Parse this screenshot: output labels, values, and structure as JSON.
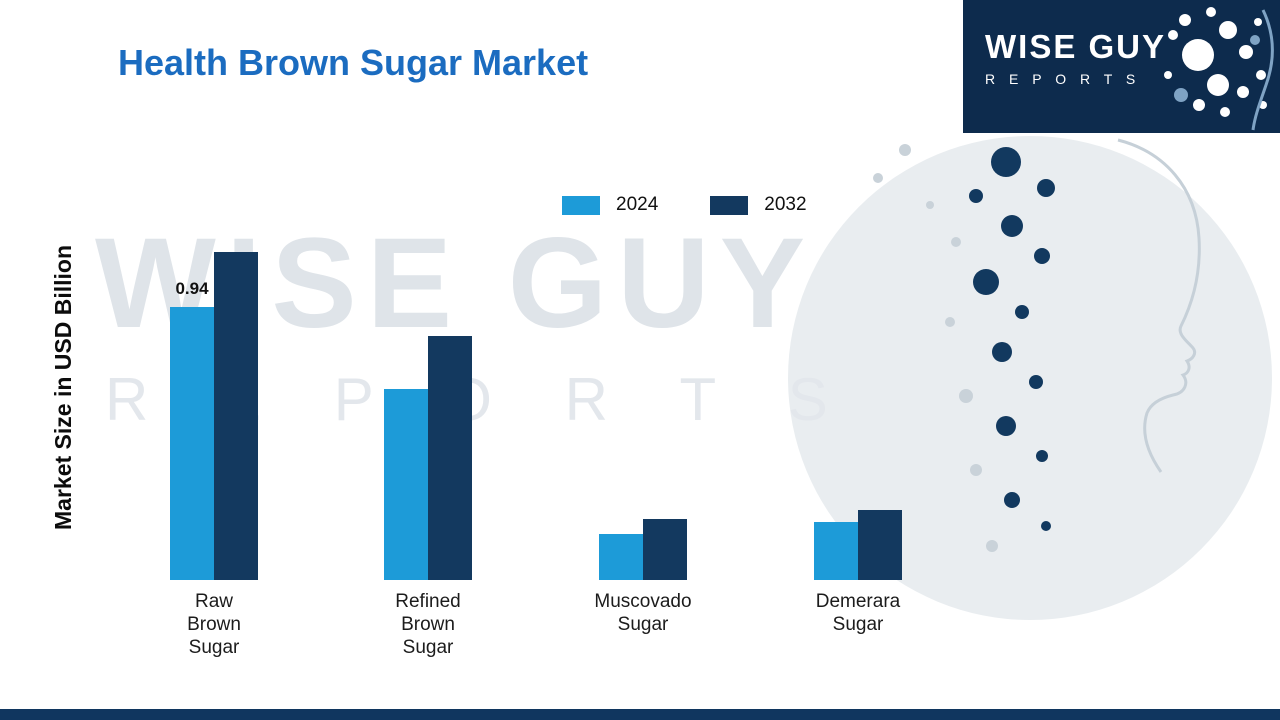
{
  "page": {
    "title": "Health Brown Sugar Market",
    "ylabel": "Market Size in USD Billion"
  },
  "logo": {
    "brand": "WISE GUY",
    "reports": "R E P O R T S"
  },
  "watermark": {
    "line1": "WISE GUY",
    "line2": "R E P O R T S"
  },
  "chart_data": {
    "type": "bar",
    "title": "Health Brown Sugar Market",
    "ylabel": "Market Size in USD Billion",
    "categories": [
      "Raw Brown Sugar",
      "Refined Brown Sugar",
      "Muscovado Sugar",
      "Demerara Sugar"
    ],
    "series": [
      {
        "name": "2024",
        "color": "#1d9bd8",
        "values": [
          0.94,
          0.66,
          0.16,
          0.2
        ]
      },
      {
        "name": "2032",
        "color": "#13395f",
        "values": [
          1.13,
          0.84,
          0.21,
          0.24
        ]
      }
    ],
    "annotations": [
      {
        "category_index": 0,
        "series_index": 0,
        "text": "0.94"
      }
    ],
    "ylim": [
      0,
      1.2
    ],
    "legend_position": "top",
    "grid": false
  },
  "colors": {
    "title_blue": "#1b6cc0",
    "bar_2024": "#1d9bd8",
    "bar_2032": "#13395f",
    "logo_background": "#0d2b4d",
    "bottom_strip": "#10365f",
    "circle_gray": "#e9edf0"
  }
}
